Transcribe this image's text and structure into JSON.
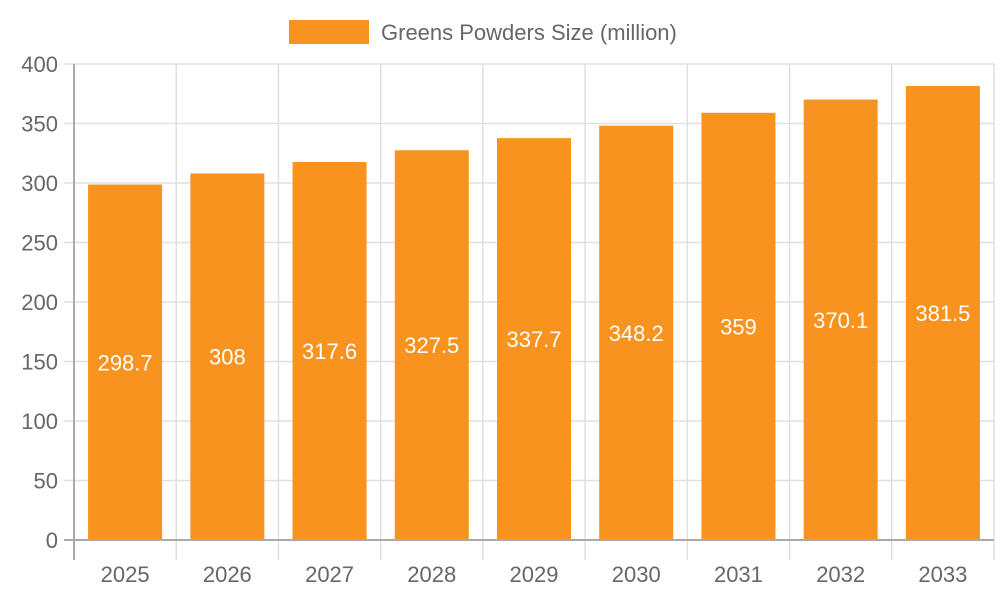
{
  "chart_data": {
    "type": "bar",
    "title": "",
    "xlabel": "",
    "ylabel": "",
    "categories": [
      "2025",
      "2026",
      "2027",
      "2028",
      "2029",
      "2030",
      "2031",
      "2032",
      "2033"
    ],
    "series": [
      {
        "name": "Greens Powders Size (million)",
        "values": [
          298.7,
          308,
          317.6,
          327.5,
          337.7,
          348.2,
          359,
          370.1,
          381.5
        ],
        "color": "#f7931e"
      }
    ],
    "ylim": [
      0,
      400
    ],
    "yticks": [
      0,
      50,
      100,
      150,
      200,
      250,
      300,
      350,
      400
    ],
    "grid": true,
    "legend_position": "top",
    "data_labels": "inside-center"
  }
}
